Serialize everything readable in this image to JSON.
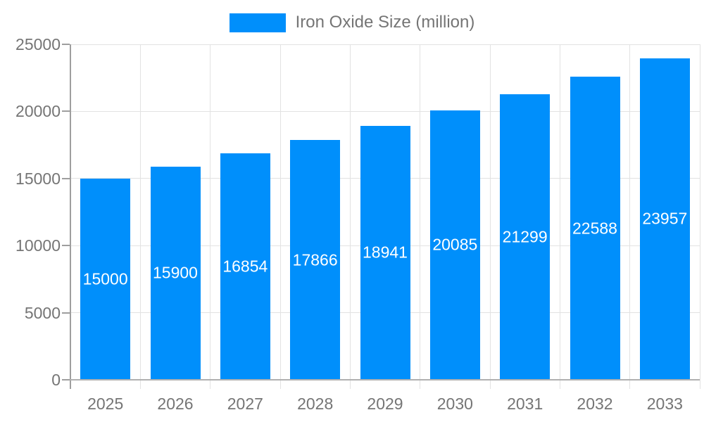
{
  "legend": {
    "series_label": "Iron Oxide Size (million)"
  },
  "colors": {
    "bar": "#008ffb",
    "axis": "#9e9e9e",
    "baseline": "#b0b0b0",
    "grid": "#e2e2e2",
    "text": "#757575",
    "value_label": "#ffffff"
  },
  "chart_data": {
    "type": "bar",
    "title": "",
    "legend_label": "Iron Oxide Size (million)",
    "legend_position": "top",
    "categories": [
      "2025",
      "2026",
      "2027",
      "2028",
      "2029",
      "2030",
      "2031",
      "2032",
      "2033"
    ],
    "series": [
      {
        "name": "Iron Oxide Size (million)",
        "values": [
          15000,
          15900,
          16854,
          17866,
          18941,
          20085,
          21299,
          22588,
          23957
        ]
      }
    ],
    "value_labels": [
      "15000",
      "15900",
      "16854",
      "17866",
      "18941",
      "20085",
      "21299",
      "22588",
      "23957"
    ],
    "xlabel": "",
    "ylabel": "",
    "ylim": [
      0,
      25000
    ],
    "ytick_interval": 5000,
    "yticks": [
      "0",
      "5000",
      "10000",
      "15000",
      "20000",
      "25000"
    ],
    "grid": true
  }
}
